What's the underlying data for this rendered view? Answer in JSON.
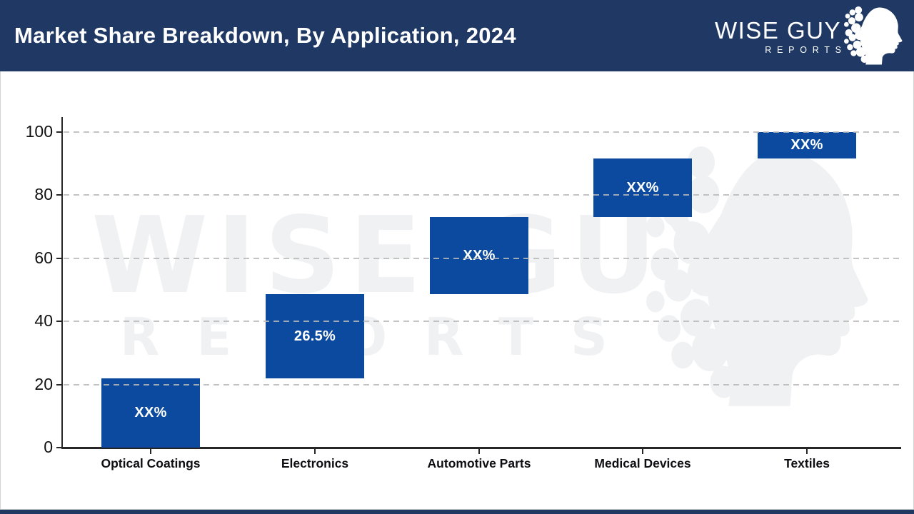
{
  "header": {
    "title": "Market Share Breakdown, By Application, 2024",
    "logo": {
      "name": "WISE GUY",
      "sub": "REPORTS"
    }
  },
  "watermark": {
    "line1": "WISE GUY",
    "line2": "REPORTS"
  },
  "chart_data": {
    "type": "bar",
    "subtype": "floating-waterfall",
    "title": "Market Share Breakdown, By Application, 2024",
    "categories": [
      "Optical Coatings",
      "Electronics",
      "Automotive Parts",
      "Medical Devices",
      "Textiles"
    ],
    "segments": [
      {
        "category": "Optical Coatings",
        "start": 0,
        "end": 22,
        "label": "XX%"
      },
      {
        "category": "Electronics",
        "start": 22,
        "end": 48.5,
        "label": "26.5%"
      },
      {
        "category": "Automotive Parts",
        "start": 48.5,
        "end": 73,
        "label": "XX%"
      },
      {
        "category": "Medical Devices",
        "start": 73,
        "end": 91.5,
        "label": "XX%"
      },
      {
        "category": "Textiles",
        "start": 91.5,
        "end": 100,
        "label": "XX%"
      }
    ],
    "xlabel": "",
    "ylabel": "",
    "ylim": [
      0,
      100
    ],
    "yticks": [
      0,
      20,
      40,
      60,
      80,
      100
    ],
    "grid": "horizontal-dashed",
    "legend": "none",
    "bar_color": "#0B4A9E",
    "bar_label_color": "#FFFFFF"
  },
  "colors": {
    "header_bg": "#1F3864",
    "footer_bg": "#1F3864",
    "bar": "#0B4A9E",
    "grid": "#C9C9C9",
    "axis": "#262626",
    "watermark": "#F0F1F3"
  }
}
